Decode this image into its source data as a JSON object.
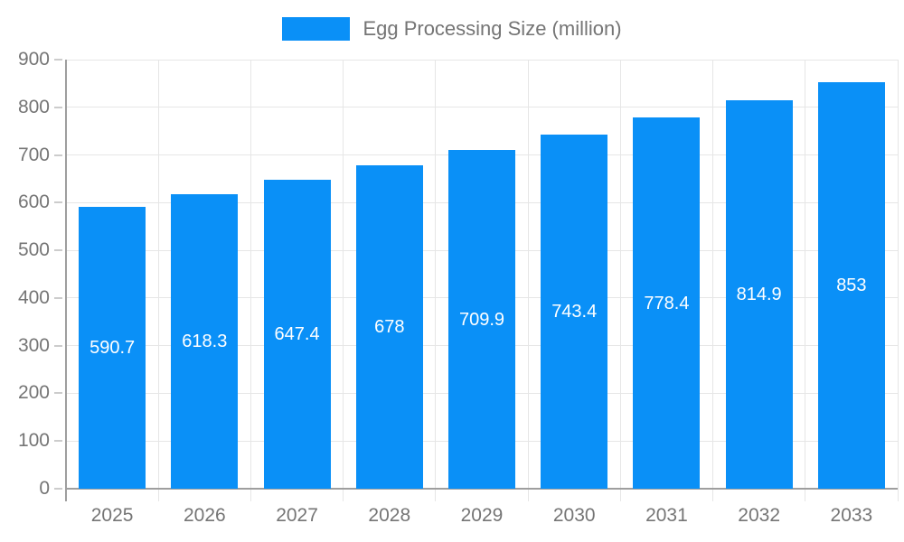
{
  "chart_data": {
    "type": "bar",
    "title": "Egg Processing Size (million)",
    "categories": [
      "2025",
      "2026",
      "2027",
      "2028",
      "2029",
      "2030",
      "2031",
      "2032",
      "2033"
    ],
    "values": [
      590.7,
      618.3,
      647.4,
      678,
      709.9,
      743.4,
      778.4,
      814.9,
      853
    ],
    "value_labels": [
      "590.7",
      "618.3",
      "647.4",
      "678",
      "709.9",
      "743.4",
      "778.4",
      "814.9",
      "853"
    ],
    "xlabel": "",
    "ylabel": "",
    "ylim": [
      0,
      900
    ],
    "ytick_step": 100,
    "grid": "on",
    "legend_position": "top",
    "colors": {
      "bar": "#0a90f7",
      "gridline": "#e6e6e6",
      "axis_line": "#9e9e9e",
      "tick_text": "#757575",
      "value_label_text": "#ffffff",
      "background": "#ffffff"
    }
  }
}
